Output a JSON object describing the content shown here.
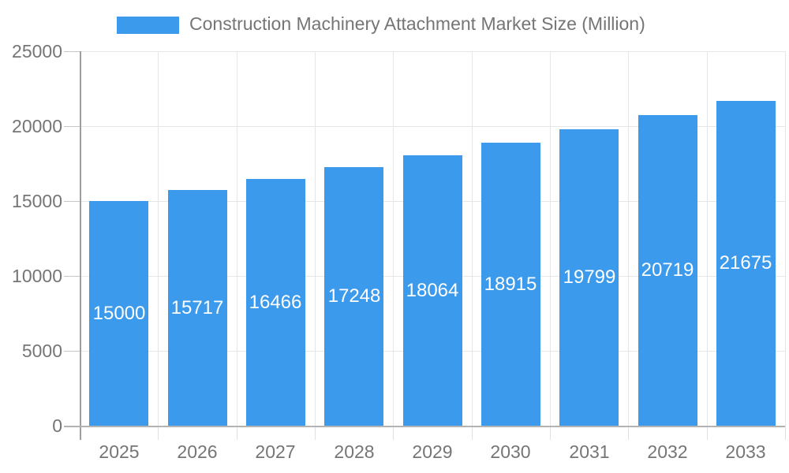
{
  "chart_data": {
    "type": "bar",
    "title": "Construction Machinery Attachment Market Size (Million)",
    "categories": [
      "2025",
      "2026",
      "2027",
      "2028",
      "2029",
      "2030",
      "2031",
      "2032",
      "2033"
    ],
    "values": [
      15000,
      15717,
      16466,
      17248,
      18064,
      18915,
      19799,
      20719,
      21675
    ],
    "xlabel": "",
    "ylabel": "",
    "ylim": [
      0,
      25000
    ],
    "yticks": [
      0,
      5000,
      10000,
      15000,
      20000,
      25000
    ],
    "grid": true,
    "legend_position": "top",
    "bar_value_labels": "centered-inside-white"
  },
  "colors": {
    "bar": "#3B9AEC",
    "bar_label": "#FFFFFF",
    "axis_text": "#757575",
    "grid_line": "#E6E6E6",
    "y_axis_line": "#9E9E9E",
    "x_axis_line": "#B3B3B3",
    "y_tick": "#C6C6C6",
    "x_tick": "#E0E0E0",
    "background": "#FFFFFF"
  }
}
